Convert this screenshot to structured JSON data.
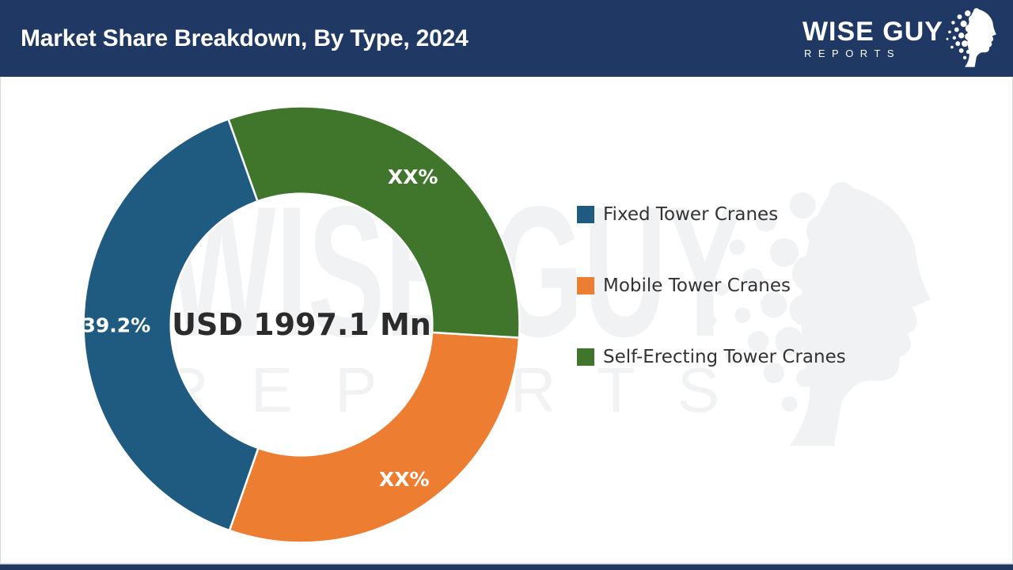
{
  "header": {
    "title": "Market Share Breakdown, By Type, 2024",
    "logo": {
      "wordmark": "WISE GUY",
      "subtitle": "REPORTS"
    }
  },
  "watermark": {
    "line1": "WISE GUY",
    "line2": "REPORTS"
  },
  "chart_data": {
    "type": "pie",
    "variant": "donut",
    "title": "Market Share Breakdown, By Type, 2024",
    "center_label": "USD 1997.1 Mn",
    "start_angle_deg": 109.6,
    "direction": "counterclockwise",
    "donut_hole_ratio": 0.6,
    "legend_position": "right",
    "slices": [
      {
        "label": "Fixed Tower Cranes",
        "value_pct": 39.2,
        "display_label": "39.2%",
        "color": "#1f5b80"
      },
      {
        "label": "Mobile Tower Cranes",
        "value_pct": 29.4,
        "display_label": "XX%",
        "color": "#ed7d31"
      },
      {
        "label": "Self-Erecting Tower Cranes",
        "value_pct": 31.4,
        "display_label": "XX%",
        "color": "#40752c"
      }
    ]
  },
  "colors": {
    "header_bg": "#1f3864",
    "footer_bg": "#1f3864",
    "watermark": "#f0f2f4",
    "center_text": "#2b2b2b",
    "legend_text": "#333333"
  }
}
